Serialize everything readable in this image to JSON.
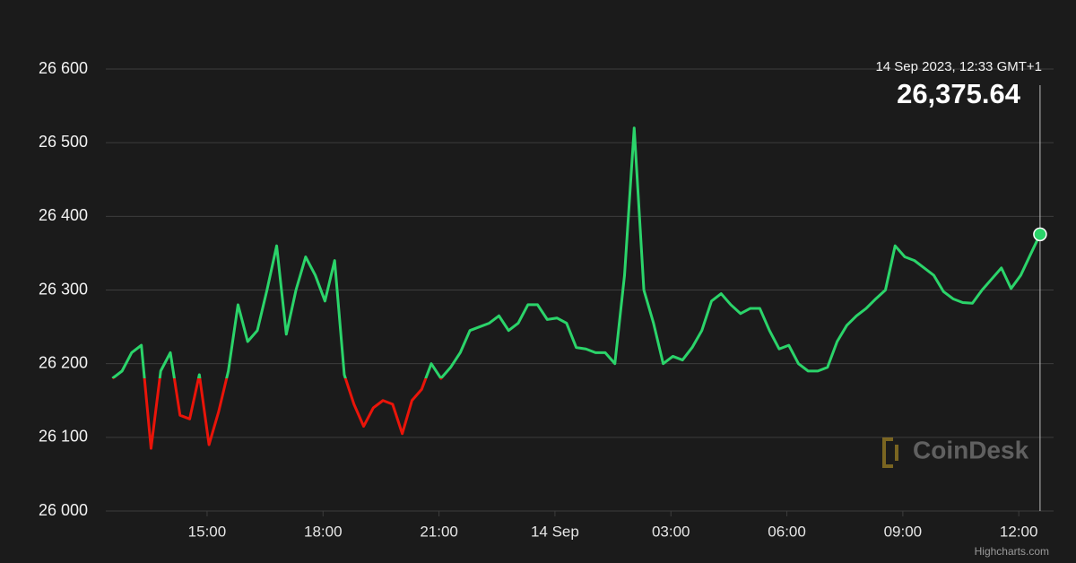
{
  "chart_data": {
    "type": "line",
    "x": [
      12.55,
      12.8,
      13.05,
      13.3,
      13.55,
      13.8,
      14.05,
      14.3,
      14.55,
      14.8,
      15.05,
      15.3,
      15.55,
      15.8,
      16.05,
      16.3,
      16.55,
      16.8,
      17.05,
      17.3,
      17.55,
      17.8,
      18.05,
      18.3,
      18.55,
      18.8,
      19.05,
      19.3,
      19.55,
      19.8,
      20.05,
      20.3,
      20.55,
      20.8,
      21.05,
      21.3,
      21.55,
      21.8,
      22.05,
      22.3,
      22.55,
      22.8,
      23.05,
      23.3,
      23.55,
      23.8,
      24.05,
      24.3,
      24.55,
      24.8,
      25.05,
      25.3,
      25.55,
      25.8,
      26.05,
      26.3,
      26.55,
      26.8,
      27.05,
      27.3,
      27.55,
      27.8,
      28.05,
      28.3,
      28.55,
      28.8,
      29.05,
      29.3,
      29.55,
      29.8,
      30.05,
      30.3,
      30.55,
      30.8,
      31.05,
      31.3,
      31.55,
      31.8,
      32.05,
      32.3,
      32.55,
      32.8,
      33.05,
      33.3,
      33.55,
      33.8,
      34.05,
      34.3,
      34.55,
      34.8,
      35.05,
      35.3,
      35.55,
      35.8,
      36.05,
      36.3,
      36.55
    ],
    "values": [
      26180,
      26190,
      26215,
      26225,
      26085,
      26190,
      26215,
      26130,
      26125,
      26185,
      26090,
      26135,
      26190,
      26280,
      26230,
      26245,
      26300,
      26360,
      26240,
      26300,
      26345,
      26320,
      26285,
      26340,
      26185,
      26145,
      26115,
      26140,
      26150,
      26145,
      26105,
      26150,
      26165,
      26200,
      26180,
      26195,
      26215,
      26245,
      26250,
      26255,
      26265,
      26245,
      26255,
      26280,
      26280,
      26260,
      26262,
      26255,
      26222,
      26220,
      26215,
      26215,
      26200,
      26320,
      26520,
      26300,
      26255,
      26200,
      26210,
      26205,
      26222,
      26245,
      26285,
      26295,
      26280,
      26268,
      26275,
      26275,
      26245,
      26220,
      26225,
      26200,
      26190,
      26190,
      26195,
      26230,
      26252,
      26265,
      26275,
      26288,
      26300,
      26360,
      26345,
      26340,
      26330,
      26320,
      26298,
      26288,
      26283,
      26282,
      26300,
      26315,
      26330,
      26302,
      26320,
      26348,
      26375.64
    ],
    "threshold": 26180,
    "up_color": "#2bd46a",
    "down_color": "#ea1409",
    "xlim": [
      12.38,
      36.9
    ],
    "xticks": [
      {
        "value": 15,
        "label": "15:00"
      },
      {
        "value": 18,
        "label": "18:00"
      },
      {
        "value": 21,
        "label": "21:00"
      },
      {
        "value": 24,
        "label": "14 Sep"
      },
      {
        "value": 27,
        "label": "03:00"
      },
      {
        "value": 30,
        "label": "06:00"
      },
      {
        "value": 33,
        "label": "09:00"
      },
      {
        "value": 36,
        "label": "12:00"
      }
    ],
    "ylim": [
      26000,
      26600
    ],
    "yticks": [
      {
        "value": 26000,
        "label": "26 000"
      },
      {
        "value": 26100,
        "label": "26 100"
      },
      {
        "value": 26200,
        "label": "26 200"
      },
      {
        "value": 26300,
        "label": "26 300"
      },
      {
        "value": 26400,
        "label": "26 400"
      },
      {
        "value": 26500,
        "label": "26 500"
      },
      {
        "value": 26600,
        "label": "26 600"
      }
    ],
    "grid": true,
    "tooltip": {
      "x_label": "14 Sep 2023, 12:33 GMT+1",
      "value": 26375.64,
      "label": "26,375.64"
    },
    "watermark": "CoinDesk",
    "credit": "Highcharts.com"
  }
}
